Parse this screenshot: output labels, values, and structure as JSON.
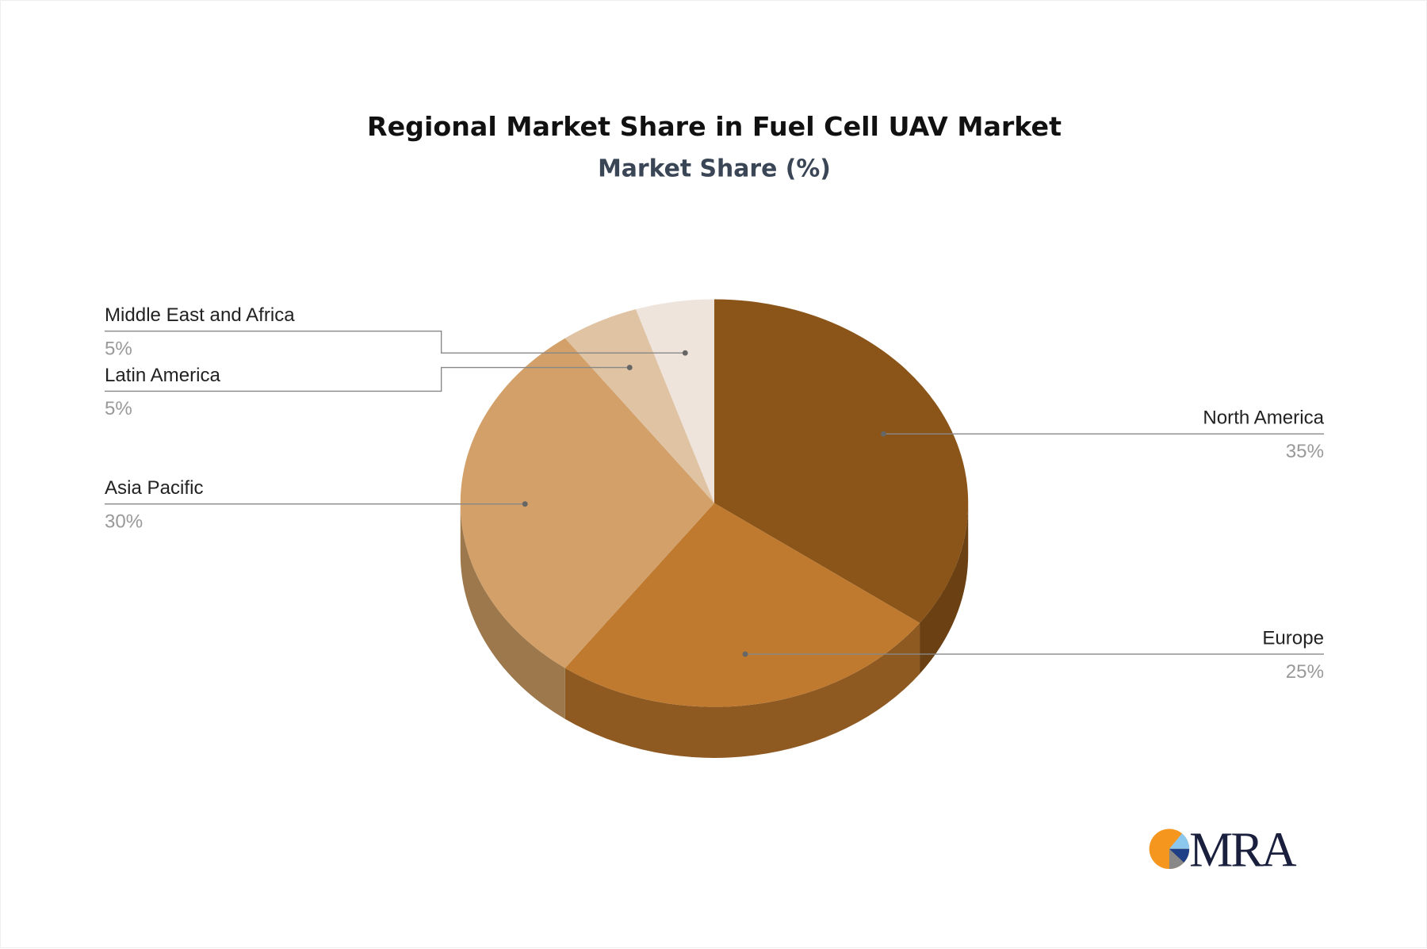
{
  "chart_data": {
    "type": "pie",
    "style": "3d",
    "title": "Regional Market Share in Fuel Cell UAV Market",
    "subtitle": "Market Share (%)",
    "categories": [
      "North America",
      "Europe",
      "Asia Pacific",
      "Latin America",
      "Middle East and Africa"
    ],
    "values": [
      35,
      25,
      30,
      5,
      5
    ],
    "value_labels": [
      "35%",
      "25%",
      "30%",
      "5%",
      "5%"
    ],
    "colors": [
      "#8B5519",
      "#BF7A2F",
      "#D2A068",
      "#DFC3A3",
      "#EEE4DC"
    ],
    "side_colors": [
      "#6B4012",
      "#8F5A22",
      "#9C784C",
      "#A89279",
      "#B3aba4"
    ]
  },
  "logo": {
    "text": "MRA",
    "colors": [
      "#F5961E",
      "#8CC8EE",
      "#1E3F85",
      "#888888",
      "#1a1f3d"
    ]
  }
}
